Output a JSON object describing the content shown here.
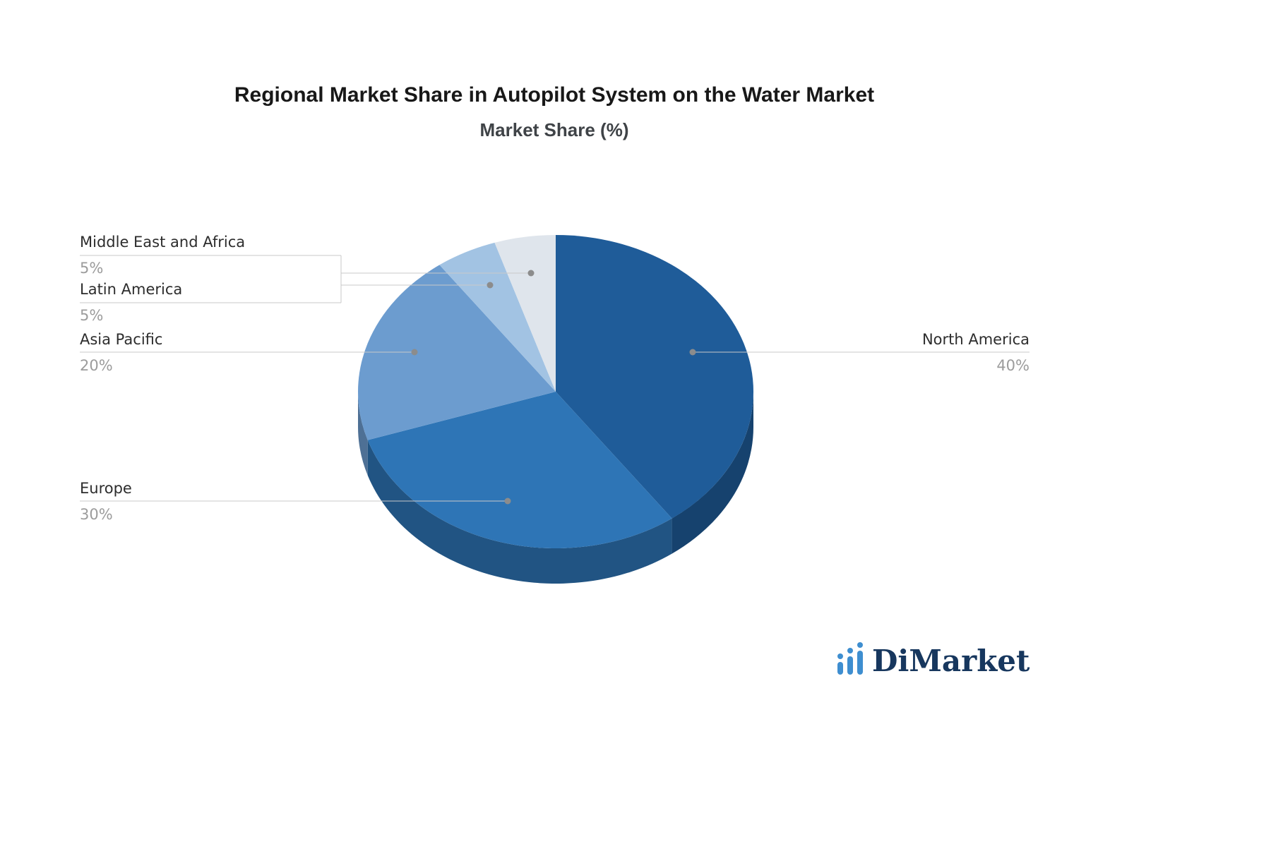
{
  "title": "Regional Market Share in Autopilot System on the Water Market",
  "subtitle": "Market Share (%)",
  "brand": {
    "name": "DiMarket",
    "text_color": "#17375E",
    "icon_color": "#3E8ED0"
  },
  "chart_data": {
    "type": "pie",
    "title": "Regional Market Share in Autopilot System on the Water Market",
    "subtitle": "Market Share (%)",
    "unit": "%",
    "effect": "3d",
    "direction": "clockwise",
    "start_angle_deg": 0,
    "legend_position": "callout-labels",
    "total": 100,
    "slices": [
      {
        "label": "North America",
        "value": 40,
        "display": "40%",
        "color": "#1F5C99"
      },
      {
        "label": "Europe",
        "value": 30,
        "display": "30%",
        "color": "#2E75B6"
      },
      {
        "label": "Asia Pacific",
        "value": 20,
        "display": "20%",
        "color": "#6C9CCF"
      },
      {
        "label": "Latin America",
        "value": 5,
        "display": "5%",
        "color": "#A2C3E3"
      },
      {
        "label": "Middle East and Africa",
        "value": 5,
        "display": "5%",
        "color": "#DFE5EC"
      }
    ],
    "colors": {
      "leader_line": "#c9c9c9",
      "leader_dot": "#8c8c8c",
      "value_text": "#9c9c9c"
    }
  }
}
